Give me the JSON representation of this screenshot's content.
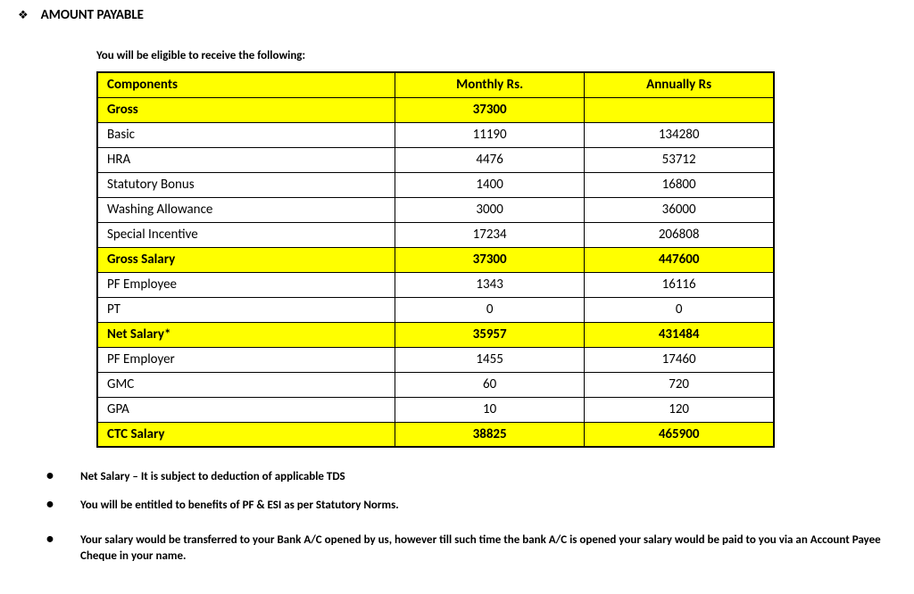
{
  "heading": "AMOUNT PAYABLE",
  "intro": "You will be eligible to receive the following:",
  "table": {
    "columns": [
      "Components",
      "Monthly Rs.",
      "Annually Rs"
    ],
    "col_widths_pct": [
      44,
      28,
      28
    ],
    "highlight_color": "#ffff00",
    "border_color": "#000000",
    "header_fontsize": 15,
    "cell_fontsize": 15,
    "rows": [
      {
        "component": "Gross",
        "monthly": "37300",
        "annually": "",
        "highlight": true,
        "bold": true
      },
      {
        "component": "Basic",
        "monthly": "11190",
        "annually": "134280",
        "highlight": false,
        "bold": false
      },
      {
        "component": "HRA",
        "monthly": "4476",
        "annually": "53712",
        "highlight": false,
        "bold": false
      },
      {
        "component": "Statutory Bonus",
        "monthly": "1400",
        "annually": "16800",
        "highlight": false,
        "bold": false
      },
      {
        "component": "Washing Allowance",
        "monthly": "3000",
        "annually": "36000",
        "highlight": false,
        "bold": false
      },
      {
        "component": "Special Incentive",
        "monthly": "17234",
        "annually": "206808",
        "highlight": false,
        "bold": false
      },
      {
        "component": "Gross Salary",
        "monthly": "37300",
        "annually": "447600",
        "highlight": true,
        "bold": true
      },
      {
        "component": "PF Employee",
        "monthly": "1343",
        "annually": "16116",
        "highlight": false,
        "bold": false
      },
      {
        "component": "PT",
        "monthly": "0",
        "annually": "0",
        "highlight": false,
        "bold": false
      },
      {
        "component": "Net Salary*",
        "monthly": "35957",
        "annually": "431484",
        "highlight": true,
        "bold": true
      },
      {
        "component": "PF Employer",
        "monthly": "1455",
        "annually": "17460",
        "highlight": false,
        "bold": false
      },
      {
        "component": "GMC",
        "monthly": "60",
        "annually": "720",
        "highlight": false,
        "bold": false
      },
      {
        "component": "GPA",
        "monthly": "10",
        "annually": "120",
        "highlight": false,
        "bold": false
      },
      {
        "component": "CTC Salary",
        "monthly": "38825",
        "annually": "465900",
        "highlight": true,
        "bold": true
      }
    ]
  },
  "notes": [
    "Net Salary – It is subject to deduction of applicable TDS",
    "You will be entitled to benefits of PF & ESI as per Statutory Norms.",
    "Your salary would be transferred to your Bank A/C opened by us, however till such time the bank A/C is opened your salary would be paid to you via an Account Payee Cheque in your name."
  ]
}
